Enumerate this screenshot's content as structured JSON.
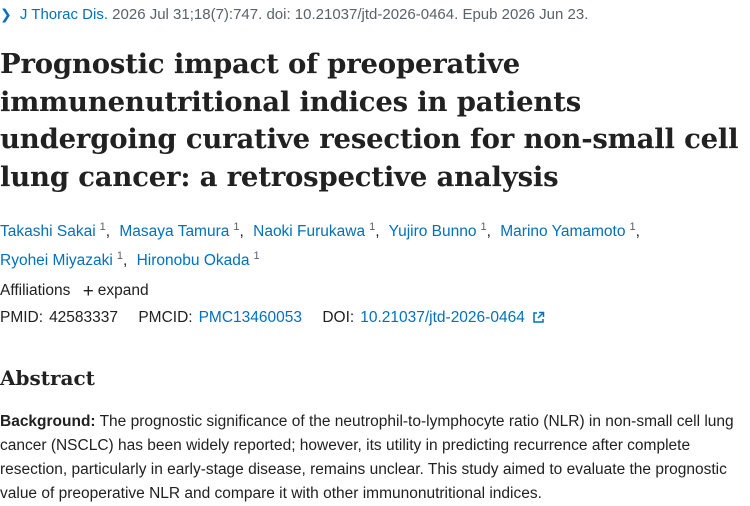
{
  "citation": {
    "journal": "J Thorac Dis.",
    "details": "2026 Jul 31;18(7):747. doi: 10.21037/jtd-2026-0464. Epub 2026 Jun 23."
  },
  "article": {
    "title": "Prognostic impact of preoperative immunenutritional indices in patients undergoing curative resection for non-small cell lung cancer: a retrospective analysis"
  },
  "authors": [
    {
      "name": "Takashi Sakai",
      "aff": "1"
    },
    {
      "name": "Masaya Tamura",
      "aff": "1"
    },
    {
      "name": "Naoki Furukawa",
      "aff": "1"
    },
    {
      "name": "Yujiro Bunno",
      "aff": "1"
    },
    {
      "name": "Marino Yamamoto",
      "aff": "1"
    },
    {
      "name": "Ryohei Miyazaki",
      "aff": "1"
    },
    {
      "name": "Hironobu Okada",
      "aff": "1"
    }
  ],
  "affiliations": {
    "label": "Affiliations",
    "expand_label": "expand"
  },
  "identifiers": {
    "pmid_label": "PMID:",
    "pmid": "42583337",
    "pmcid_label": "PMCID:",
    "pmcid": "PMC13460053",
    "doi_label": "DOI:",
    "doi": "10.21037/jtd-2026-0464"
  },
  "abstract": {
    "heading": "Abstract",
    "background_label": "Background:",
    "background_text": "The prognostic significance of the neutrophil-to-lymphocyte ratio (NLR) in non-small cell lung cancer (NSCLC) has been widely reported; however, its utility in predicting recurrence after complete resection, particularly in early-stage disease, remains unclear. This study aimed to evaluate the prognostic value of preoperative NLR and compare it with other immunonutritional indices."
  },
  "colors": {
    "link": "#0071bc",
    "text": "#212121",
    "muted": "#5b616b"
  },
  "icons": {
    "back": "chevron-right-icon",
    "expand": "plus-icon",
    "external": "external-link-icon"
  }
}
